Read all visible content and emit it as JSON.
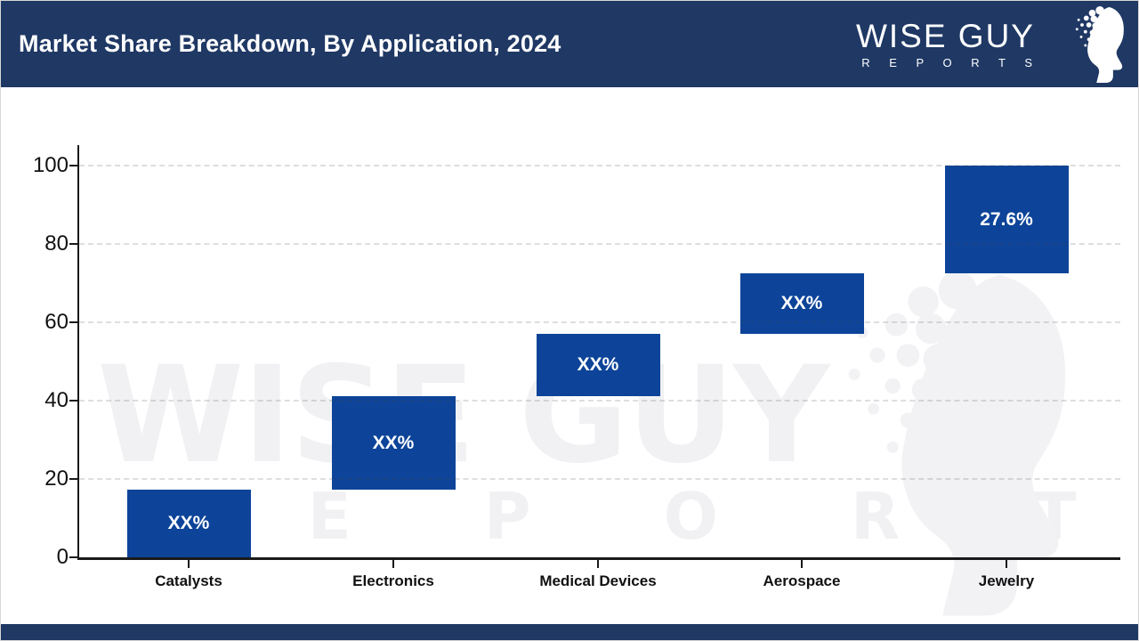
{
  "header": {
    "title": "Market Share Breakdown, By Application, 2024",
    "bg_color": "#1f3864",
    "logo": {
      "wordmark": "WISE GUY",
      "subtext": "REPORTS"
    }
  },
  "watermark": {
    "wordmark": "WISE GUY",
    "subtext": "REPORTS"
  },
  "chart_data": {
    "type": "bar",
    "subtype": "floating-waterfall",
    "title": "Market Share Breakdown, By Application, 2024",
    "xlabel": "",
    "ylabel": "",
    "categories": [
      "Catalysts",
      "Electronics",
      "Medical Devices",
      "Aerospace",
      "Jewelry"
    ],
    "segments": [
      {
        "category": "Catalysts",
        "start": 0,
        "end": 17.3,
        "size_pct": 17.3,
        "label": "XX%"
      },
      {
        "category": "Electronics",
        "start": 17.3,
        "end": 41.1,
        "size_pct": 23.8,
        "label": "XX%"
      },
      {
        "category": "Medical Devices",
        "start": 41.1,
        "end": 57.1,
        "size_pct": 16.0,
        "label": "XX%"
      },
      {
        "category": "Aerospace",
        "start": 57.1,
        "end": 72.4,
        "size_pct": 15.3,
        "label": "XX%"
      },
      {
        "category": "Jewelry",
        "start": 72.4,
        "end": 100,
        "size_pct": 27.6,
        "label": "27.6%"
      }
    ],
    "yticks": [
      0,
      20,
      40,
      60,
      80,
      100
    ],
    "ylim": [
      0,
      100
    ],
    "bar_color": "#0d4499",
    "grid": true,
    "gridline_style": "dashed",
    "legend": "none"
  }
}
